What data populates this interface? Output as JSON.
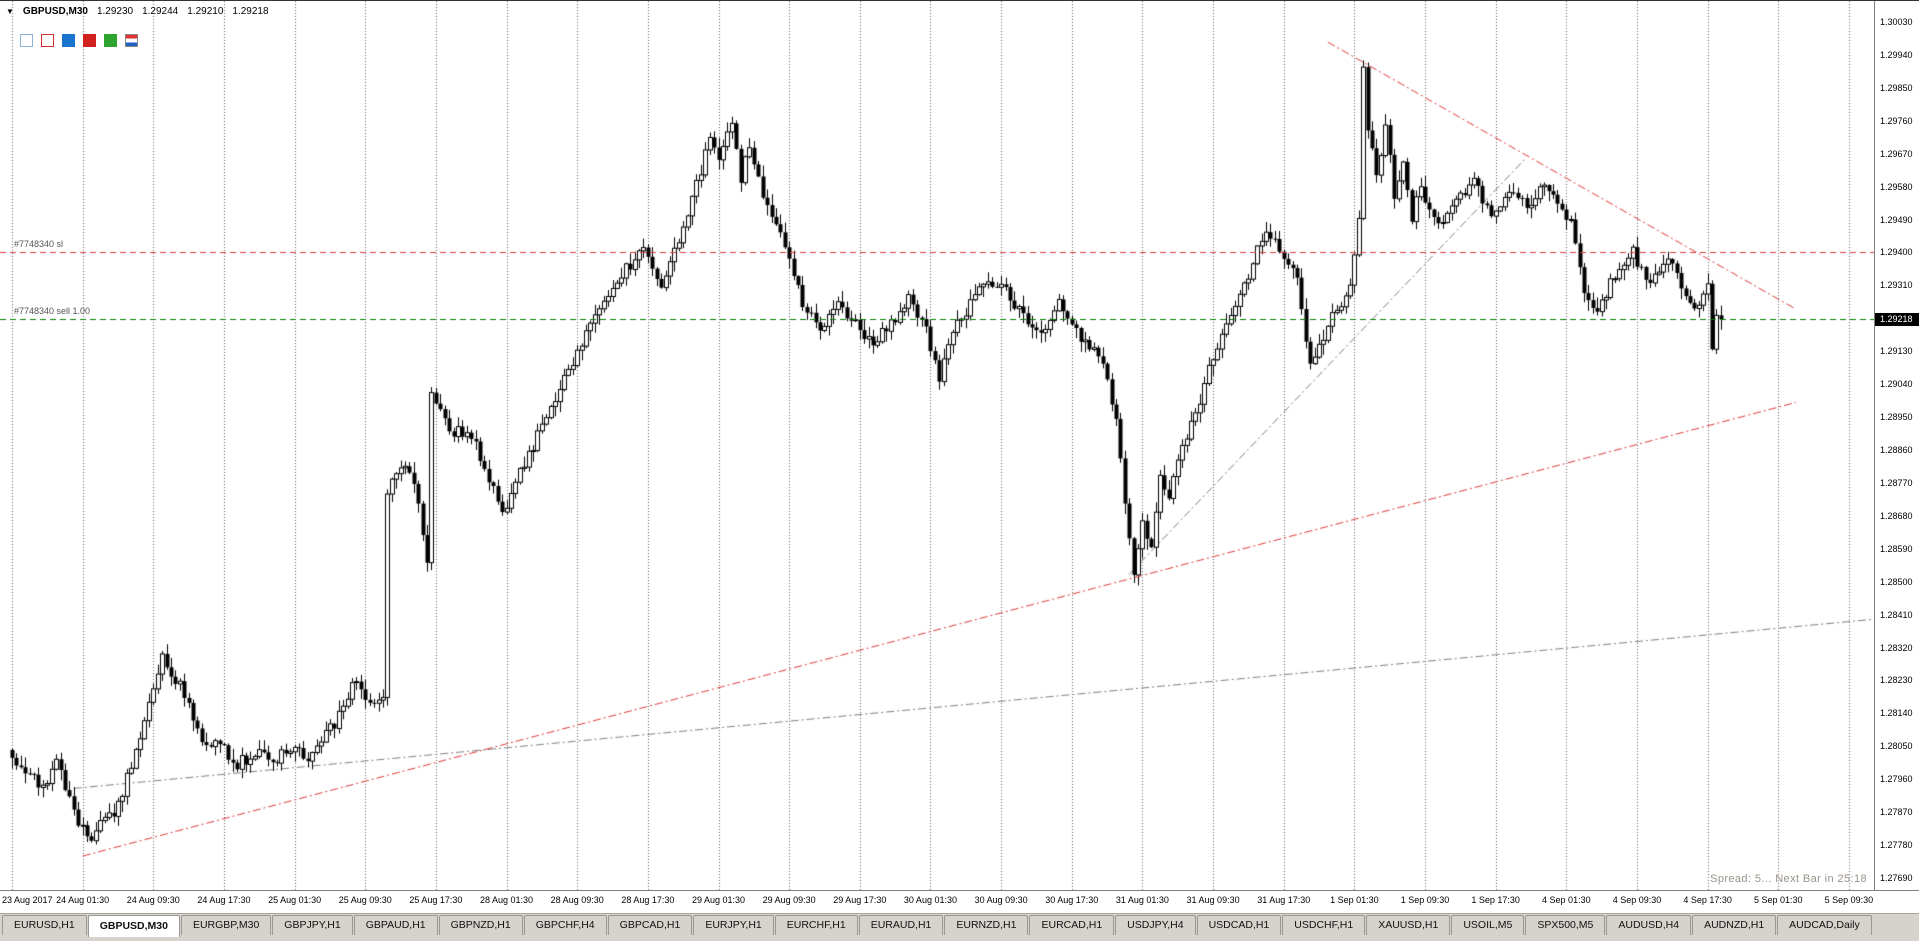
{
  "window": {
    "dropdown_arrow": "▼",
    "symbol_title": "GBPUSD,M30",
    "ohlc": {
      "open": "1.29230",
      "high": "1.29244",
      "low": "1.29210",
      "close": "1.29218"
    }
  },
  "toolbar": {
    "swatches": [
      {
        "name": "white-blue-outline",
        "fill": "#ffffff",
        "border": "#8db3d6"
      },
      {
        "name": "white-red-outline",
        "fill": "#ffffff",
        "border": "#d03030"
      },
      {
        "name": "blue",
        "fill": "#1874cd",
        "border": "#1874cd"
      },
      {
        "name": "red",
        "fill": "#d02020",
        "border": "#d02020"
      },
      {
        "name": "green",
        "fill": "#2ea32e",
        "border": "#2ea32e"
      },
      {
        "name": "striped",
        "fill": "stripes",
        "border": "#888888",
        "stripes": [
          "#e03030",
          "#ffffff",
          "#2060c0"
        ]
      }
    ]
  },
  "chart": {
    "gridline_color": "#666666",
    "spread_text": "Spread: 5... Next Bar in 25:18",
    "price_axis": {
      "current": "1.29218",
      "ticks": [
        "1.30030",
        "1.29940",
        "1.29850",
        "1.29760",
        "1.29670",
        "1.29580",
        "1.29490",
        "1.29400",
        "1.29310",
        "1.29130",
        "1.29040",
        "1.28950",
        "1.28860",
        "1.28770",
        "1.28680",
        "1.28590",
        "1.28500",
        "1.28410",
        "1.28320",
        "1.28230",
        "1.28140",
        "1.28050",
        "1.27960",
        "1.27870",
        "1.27780",
        "1.27690"
      ]
    },
    "time_axis": {
      "labels": [
        "23 Aug 2017",
        "24 Aug 01:30",
        "24 Aug 09:30",
        "24 Aug 17:30",
        "25 Aug 01:30",
        "25 Aug 09:30",
        "25 Aug 17:30",
        "28 Aug 01:30",
        "28 Aug 09:30",
        "28 Aug 17:30",
        "29 Aug 01:30",
        "29 Aug 09:30",
        "29 Aug 17:30",
        "30 Aug 01:30",
        "30 Aug 09:30",
        "30 Aug 17:30",
        "31 Aug 01:30",
        "31 Aug 09:30",
        "31 Aug 17:30",
        "1 Sep 01:30",
        "1 Sep 09:30",
        "1 Sep 17:30",
        "4 Sep 01:30",
        "4 Sep 09:30",
        "4 Sep 17:30",
        "5 Sep 01:30",
        "5 Sep 09:30"
      ]
    },
    "orders": [
      {
        "label": "#7748340 sl",
        "price": 1.294,
        "color": "#e03c3c",
        "style": "dashed"
      },
      {
        "label": "#7748340 sell 1.00",
        "price": 1.29218,
        "color": "#008000",
        "style": "dashed"
      }
    ],
    "trendlines": [
      {
        "color": "#e03c3c",
        "from": [
          298,
          1.29975
        ],
        "to": [
          404,
          1.29245
        ]
      },
      {
        "color": "#e03c3c",
        "from": [
          16,
          1.2775
        ],
        "to": [
          404,
          1.2899
        ]
      },
      {
        "color": "#808080",
        "from": [
          253,
          1.2852
        ],
        "to": [
          343,
          1.2966
        ]
      },
      {
        "color": "#808080",
        "from": [
          14,
          1.27935
        ],
        "to": [
          424,
          1.284
        ]
      }
    ]
  },
  "chart_data": {
    "type": "candlestick",
    "symbol": "GBPUSD",
    "timeframe": "M30",
    "title": "GBPUSD,M30",
    "current_price": 1.29218,
    "bar_count": 387,
    "bars_per_time_gridline": 16,
    "price_range": [
      1.2769,
      1.3003
    ],
    "keypoints": [
      [
        0,
        1.2804
      ],
      [
        4,
        1.2799
      ],
      [
        8,
        1.2794
      ],
      [
        11,
        1.2801
      ],
      [
        14,
        1.279
      ],
      [
        18,
        1.2779
      ],
      [
        21,
        1.2783
      ],
      [
        24,
        1.2787
      ],
      [
        27,
        1.2796
      ],
      [
        30,
        1.2808
      ],
      [
        33,
        1.282
      ],
      [
        35,
        1.2831
      ],
      [
        38,
        1.2823
      ],
      [
        41,
        1.2818
      ],
      [
        44,
        1.2805
      ],
      [
        48,
        1.2806
      ],
      [
        52,
        1.28
      ],
      [
        56,
        1.2803
      ],
      [
        60,
        1.2801
      ],
      [
        64,
        1.2805
      ],
      [
        68,
        1.2802
      ],
      [
        72,
        1.2808
      ],
      [
        76,
        1.2815
      ],
      [
        79,
        1.2824
      ],
      [
        82,
        1.2816
      ],
      [
        85,
        1.282
      ],
      [
        86,
        1.2875
      ],
      [
        89,
        1.2882
      ],
      [
        92,
        1.2878
      ],
      [
        95,
        1.2856
      ],
      [
        96,
        1.29
      ],
      [
        98,
        1.2898
      ],
      [
        101,
        1.289
      ],
      [
        104,
        1.2892
      ],
      [
        108,
        1.2882
      ],
      [
        112,
        1.2868
      ],
      [
        116,
        1.288
      ],
      [
        120,
        1.289
      ],
      [
        124,
        1.29
      ],
      [
        128,
        1.291
      ],
      [
        132,
        1.292
      ],
      [
        136,
        1.2928
      ],
      [
        140,
        1.2936
      ],
      [
        144,
        1.294
      ],
      [
        148,
        1.293
      ],
      [
        152,
        1.2944
      ],
      [
        156,
        1.2958
      ],
      [
        159,
        1.2972
      ],
      [
        161,
        1.2965
      ],
      [
        164,
        1.2977
      ],
      [
        166,
        1.296
      ],
      [
        168,
        1.297
      ],
      [
        171,
        1.2955
      ],
      [
        174,
        1.2948
      ],
      [
        177,
        1.2938
      ],
      [
        180,
        1.2926
      ],
      [
        184,
        1.2919
      ],
      [
        188,
        1.2926
      ],
      [
        192,
        1.2921
      ],
      [
        196,
        1.2914
      ],
      [
        200,
        1.2921
      ],
      [
        204,
        1.2927
      ],
      [
        208,
        1.2919
      ],
      [
        211,
        1.2905
      ],
      [
        214,
        1.2918
      ],
      [
        218,
        1.2926
      ],
      [
        222,
        1.2932
      ],
      [
        226,
        1.293
      ],
      [
        230,
        1.2922
      ],
      [
        234,
        1.2918
      ],
      [
        238,
        1.2926
      ],
      [
        241,
        1.292
      ],
      [
        244,
        1.2915
      ],
      [
        248,
        1.291
      ],
      [
        251,
        1.2895
      ],
      [
        253,
        1.287
      ],
      [
        255,
        1.2853
      ],
      [
        257,
        1.2866
      ],
      [
        259,
        1.286
      ],
      [
        261,
        1.2878
      ],
      [
        263,
        1.2872
      ],
      [
        266,
        1.2888
      ],
      [
        269,
        1.2896
      ],
      [
        272,
        1.2908
      ],
      [
        276,
        1.292
      ],
      [
        280,
        1.293
      ],
      [
        283,
        1.2942
      ],
      [
        286,
        1.2945
      ],
      [
        289,
        1.2938
      ],
      [
        292,
        1.2932
      ],
      [
        295,
        1.2909
      ],
      [
        298,
        1.2916
      ],
      [
        301,
        1.2925
      ],
      [
        304,
        1.293
      ],
      [
        306,
        1.295
      ],
      [
        307,
        1.2992
      ],
      [
        308,
        1.2975
      ],
      [
        310,
        1.296
      ],
      [
        312,
        1.2975
      ],
      [
        314,
        1.2955
      ],
      [
        316,
        1.2965
      ],
      [
        318,
        1.295
      ],
      [
        320,
        1.2958
      ],
      [
        324,
        1.2947
      ],
      [
        328,
        1.2953
      ],
      [
        332,
        1.296
      ],
      [
        336,
        1.295
      ],
      [
        340,
        1.2957
      ],
      [
        344,
        1.2952
      ],
      [
        348,
        1.2959
      ],
      [
        351,
        1.2955
      ],
      [
        354,
        1.2948
      ],
      [
        357,
        1.2928
      ],
      [
        360,
        1.2924
      ],
      [
        364,
        1.2934
      ],
      [
        368,
        1.294
      ],
      [
        372,
        1.2931
      ],
      [
        376,
        1.2938
      ],
      [
        380,
        1.2929
      ],
      [
        383,
        1.2924
      ],
      [
        385,
        1.2933
      ],
      [
        386,
        1.2912
      ],
      [
        387,
        1.29218
      ]
    ]
  },
  "tabs": {
    "active": "GBPUSD,M30",
    "items": [
      "EURUSD,H1",
      "GBPUSD,M30",
      "EURGBP,M30",
      "GBPJPY,H1",
      "GBPAUD,H1",
      "GBPNZD,H1",
      "GBPCHF,H4",
      "GBPCAD,H1",
      "EURJPY,H1",
      "EURCHF,H1",
      "EURAUD,H1",
      "EURNZD,H1",
      "EURCAD,H1",
      "USDJPY,H4",
      "USDCAD,H1",
      "USDCHF,H1",
      "XAUUSD,H1",
      "USOIL,M5",
      "SPX500,M5",
      "AUDUSD,H4",
      "AUDNZD,H1",
      "AUDCAD,Daily"
    ]
  }
}
